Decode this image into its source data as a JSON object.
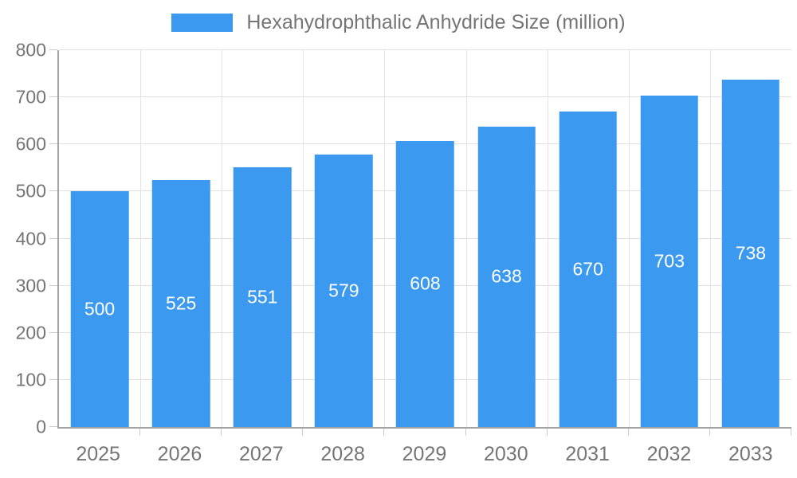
{
  "chart_data": {
    "type": "bar",
    "title": "Hexahydrophthalic Anhydride Size (million)",
    "categories": [
      "2025",
      "2026",
      "2027",
      "2028",
      "2029",
      "2030",
      "2031",
      "2032",
      "2033"
    ],
    "values": [
      500,
      525,
      551,
      579,
      608,
      638,
      670,
      703,
      738
    ],
    "xlabel": "",
    "ylabel": "",
    "ylim": [
      0,
      800
    ],
    "ytick_step": 100,
    "grid": true,
    "legend_position": "top-center",
    "value_labels": "centered-inside-bars",
    "colors": {
      "bar": "#3c99f0",
      "bar_value_text": "#ffffff",
      "axis_line": "#a3a3a3",
      "tick": "#cccccc",
      "gridline": "#e0e0e0",
      "axis_text": "#757575",
      "legend_text": "#757575",
      "background": "#ffffff"
    }
  }
}
